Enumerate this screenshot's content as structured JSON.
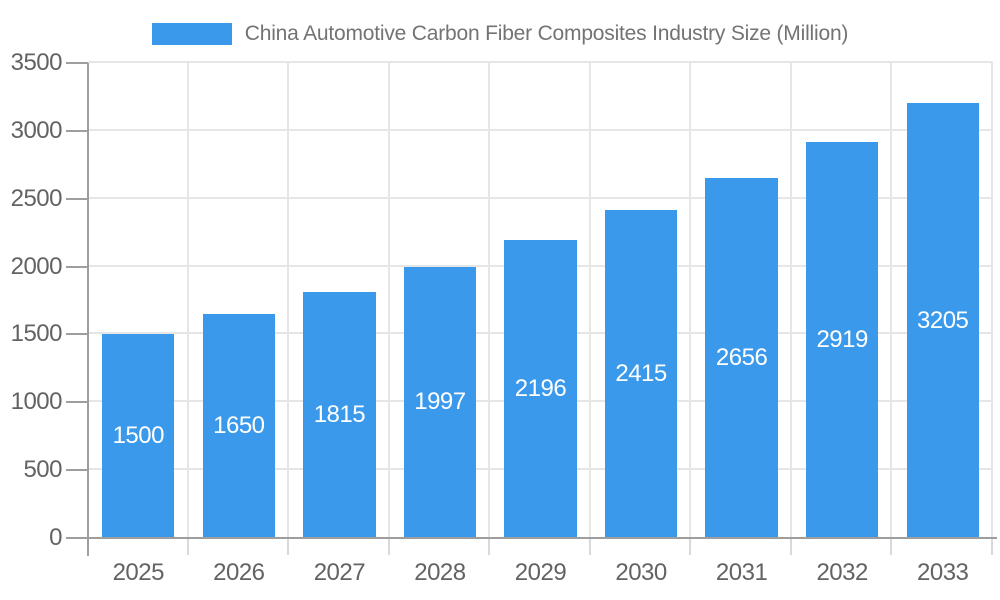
{
  "legend": {
    "label": "China Automotive Carbon Fiber Composites Industry Size (Million)",
    "swatch_color": "#3B99EC"
  },
  "chart_data": {
    "type": "bar",
    "title": "China Automotive Carbon Fiber Composites Industry Size (Million)",
    "categories": [
      "2025",
      "2026",
      "2027",
      "2028",
      "2029",
      "2030",
      "2031",
      "2032",
      "2033"
    ],
    "values": [
      1500,
      1650,
      1815,
      1997,
      2196,
      2415,
      2656,
      2919,
      3205
    ],
    "value_labels": [
      "1500",
      "1650",
      "1815",
      "1997",
      "2196",
      "2415",
      "2656",
      "2919",
      "3205"
    ],
    "xlabel": "",
    "ylabel": "",
    "ylim": [
      0,
      3500
    ],
    "yticks": [
      0,
      500,
      1000,
      1500,
      2000,
      2500,
      3000,
      3500
    ],
    "ytick_labels": [
      "0",
      "500",
      "1000",
      "1500",
      "2000",
      "2500",
      "3000",
      "3500"
    ],
    "grid": true,
    "legend_position": "top",
    "bar_color": "#3B99EC",
    "value_label_color": "#FFFFFF",
    "axis_color": "#9E9E9E",
    "gridline_color": "#E6E6E6",
    "tick_label_color": "#636363"
  }
}
